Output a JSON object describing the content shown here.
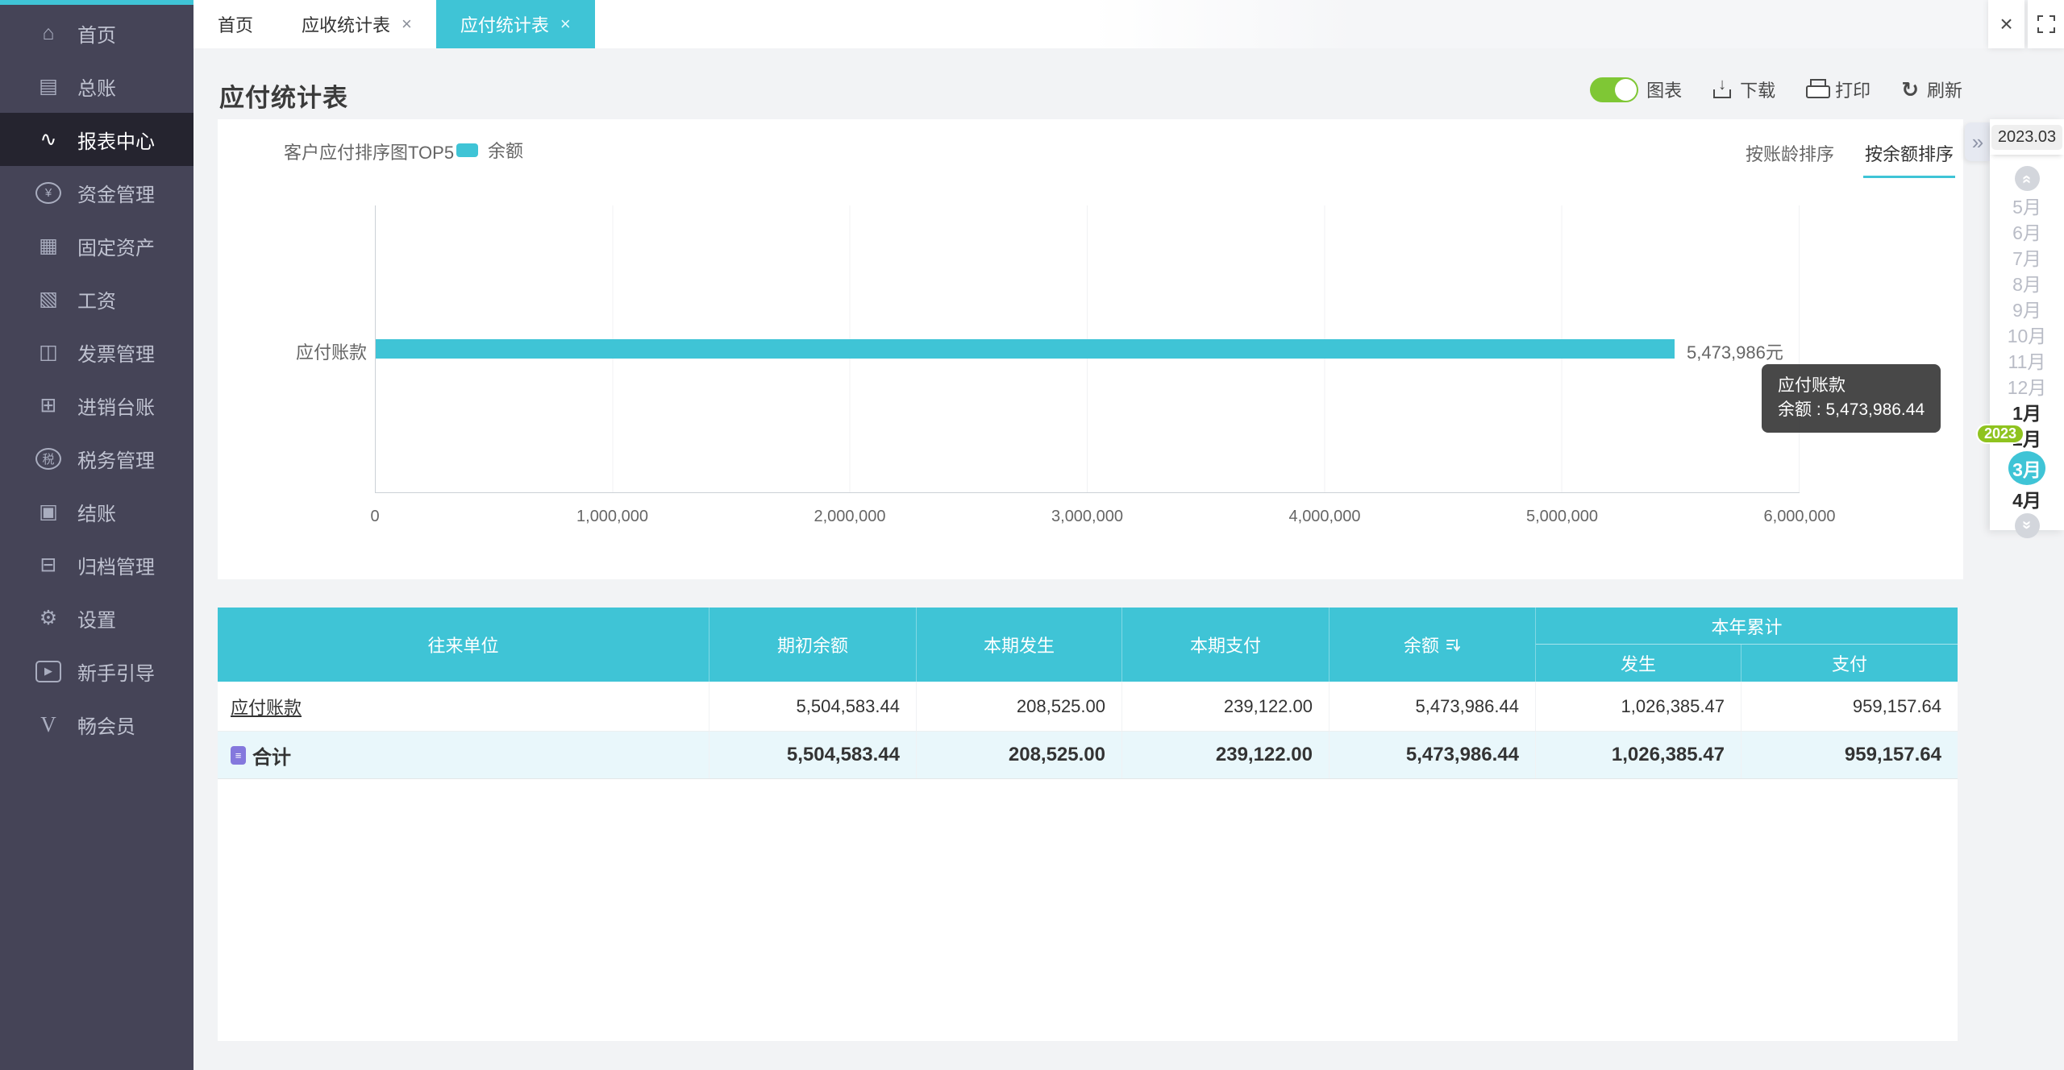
{
  "colors": {
    "accent_teal": "#3fc4d6",
    "sidebar_bg": "#454457",
    "sidebar_active_bg": "#25242f",
    "toggle_green": "#7fc735",
    "year_badge_green": "#8fc31f",
    "tooltip_bg": "#3a3a3a",
    "total_row_bg": "#e9f7fb"
  },
  "sidebar": {
    "items": [
      {
        "label": "首页",
        "icon": "home-icon",
        "glyph": "⌂"
      },
      {
        "label": "总账",
        "icon": "ledger-icon",
        "glyph": "▤"
      },
      {
        "label": "报表中心",
        "icon": "report-center-icon",
        "glyph": "∿"
      },
      {
        "label": "资金管理",
        "icon": "funds-icon",
        "glyph": "¥"
      },
      {
        "label": "固定资产",
        "icon": "fixed-assets-icon",
        "glyph": "▦"
      },
      {
        "label": "工资",
        "icon": "payroll-icon",
        "glyph": "▧"
      },
      {
        "label": "发票管理",
        "icon": "invoice-icon",
        "glyph": "◫"
      },
      {
        "label": "进销台账",
        "icon": "purchase-sale-icon",
        "glyph": "⊞"
      },
      {
        "label": "税务管理",
        "icon": "tax-icon",
        "glyph": "税"
      },
      {
        "label": "结账",
        "icon": "closing-icon",
        "glyph": "▣"
      },
      {
        "label": "归档管理",
        "icon": "archive-icon",
        "glyph": "⊟"
      },
      {
        "label": "设置",
        "icon": "settings-icon",
        "glyph": "⚙"
      },
      {
        "label": "新手引导",
        "icon": "tutorial-icon",
        "glyph": "▶"
      },
      {
        "label": "畅会员",
        "icon": "member-icon",
        "glyph": "V"
      }
    ],
    "active_index": 2
  },
  "tabs": {
    "items": [
      {
        "label": "首页"
      },
      {
        "label": "应收统计表",
        "close": "×"
      },
      {
        "label": "应付统计表",
        "close": "×"
      }
    ],
    "active_index": 2
  },
  "window": {
    "close": "×",
    "fullscreen": "fullscreen-icon"
  },
  "header": {
    "title": "应付统计表",
    "toolbar": {
      "chart_toggle": "图表",
      "download": "下载",
      "print": "打印",
      "refresh": "刷新",
      "refresh_glyph": "↻"
    }
  },
  "chart_data": {
    "type": "bar",
    "orientation": "horizontal",
    "title": "客户应付排序图TOP5",
    "legend": [
      "余额"
    ],
    "categories": [
      "应付账款"
    ],
    "values": [
      5473986.44
    ],
    "value_labels": [
      "5,473,986元"
    ],
    "xlim": [
      0,
      6000000
    ],
    "x_ticks": [
      "0",
      "1,000,000",
      "2,000,000",
      "3,000,000",
      "4,000,000",
      "5,000,000",
      "6,000,000"
    ],
    "grid": true,
    "bar_color": "#3fc4d6",
    "legend_position": "top-left",
    "tooltip": {
      "title": "应付账款",
      "text": "余额 : 5,473,986.44"
    }
  },
  "sort_controls": {
    "by_age": "按账龄排序",
    "by_balance": "按余额排序",
    "active": "by_balance"
  },
  "table": {
    "headers": {
      "company": "往来单位",
      "opening_balance": "期初余额",
      "period_incurred": "本期发生",
      "period_paid": "本期支付",
      "balance": "余额",
      "ytd": "本年累计",
      "ytd_incurred": "发生",
      "ytd_paid": "支付"
    },
    "rows": [
      {
        "name": "应付账款",
        "values": [
          "5,504,583.44",
          "208,525.00",
          "239,122.00",
          "5,473,986.44",
          "1,026,385.47",
          "959,157.64"
        ]
      }
    ],
    "total": {
      "label": "合计",
      "values": [
        "5,504,583.44",
        "208,525.00",
        "239,122.00",
        "5,473,986.44",
        "1,026,385.47",
        "959,157.64"
      ]
    }
  },
  "month_panel": {
    "current_period": "2023.03",
    "collapse_glyph": "»",
    "chevron_glyph": "«",
    "year_badge": "2023",
    "months": [
      {
        "label": "5月",
        "state": "muted"
      },
      {
        "label": "6月",
        "state": "muted"
      },
      {
        "label": "7月",
        "state": "muted"
      },
      {
        "label": "8月",
        "state": "muted"
      },
      {
        "label": "9月",
        "state": "muted"
      },
      {
        "label": "10月",
        "state": "muted"
      },
      {
        "label": "11月",
        "state": "muted"
      },
      {
        "label": "12月",
        "state": "muted"
      },
      {
        "label": "1月",
        "state": "current"
      },
      {
        "label": "2月",
        "state": "current"
      },
      {
        "label": "3月",
        "state": "active"
      },
      {
        "label": "4月",
        "state": "current"
      }
    ]
  }
}
